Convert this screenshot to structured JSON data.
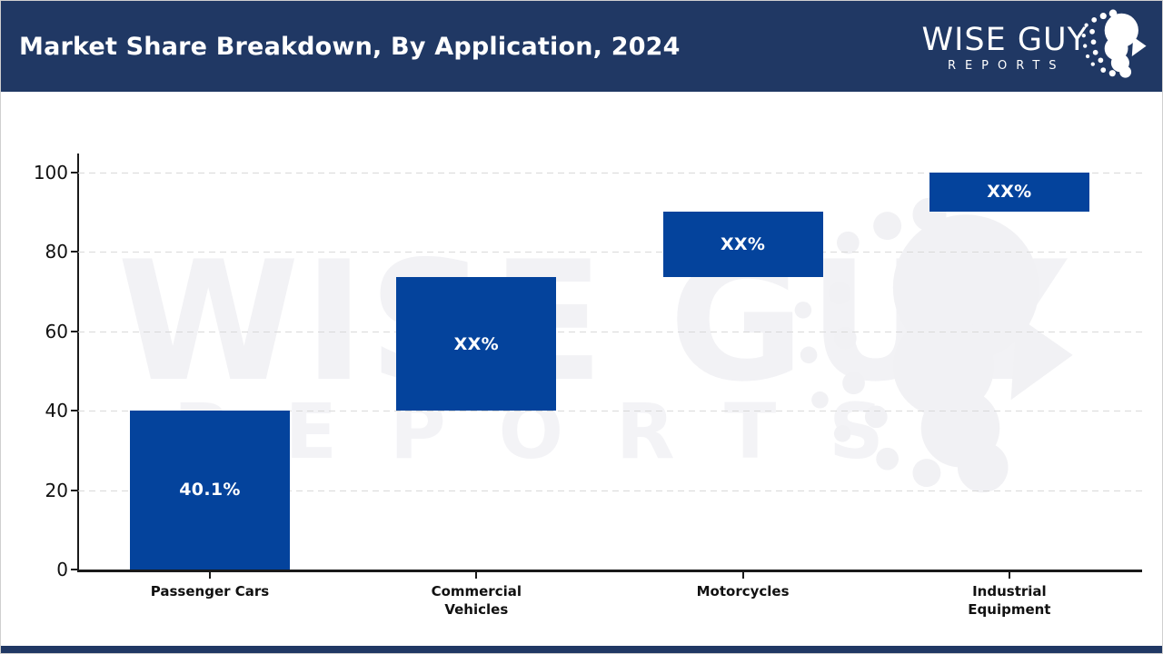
{
  "header": {
    "title": "Market Share Breakdown, By Application, 2024",
    "logo": {
      "line1": "WISE GUY",
      "line2": "REPORTS"
    }
  },
  "watermark": {
    "line1": "WISE GUY",
    "line2": "REPORTS"
  },
  "colors": {
    "header_bg": "#203864",
    "footer_bg": "#203864",
    "bar": "#04439c",
    "bar_label_text": "#ffffff",
    "axis": "#1a1a1a",
    "gridline": "#d9d9d9",
    "tick_text": "#111111",
    "watermark_text": "#f2f2f5"
  },
  "chart_data": {
    "type": "bar",
    "subtype": "waterfall",
    "title": "Market Share Breakdown, By Application, 2024",
    "categories": [
      "Passenger Cars",
      "Commercial Vehicles",
      "Motorcycles",
      "Industrial Equipment"
    ],
    "segments": [
      {
        "category": "Passenger Cars",
        "start": 0,
        "end": 40.1,
        "value": 40.1,
        "label": "40.1%"
      },
      {
        "category": "Commercial Vehicles",
        "start": 40.1,
        "end": 73.5,
        "value": 33.4,
        "label": "XX%"
      },
      {
        "category": "Motorcycles",
        "start": 73.5,
        "end": 90,
        "value": 16.5,
        "label": "XX%"
      },
      {
        "category": "Industrial Equipment",
        "start": 90,
        "end": 100,
        "value": 10,
        "label": "XX%"
      }
    ],
    "xlabel": "",
    "ylabel": "",
    "yticks": [
      0,
      20,
      40,
      60,
      80,
      100
    ],
    "ylim": [
      0,
      105
    ],
    "grid": "horizontal-dashed",
    "legend": "none",
    "bar_color": "#04439c"
  }
}
